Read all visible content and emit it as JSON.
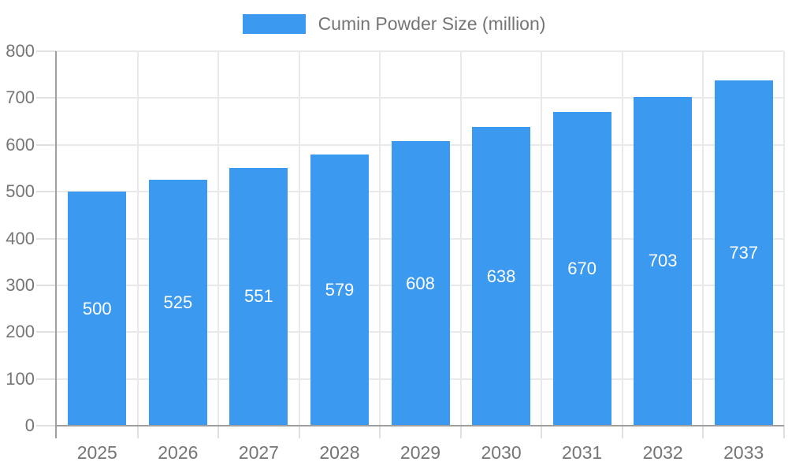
{
  "chart_data": {
    "type": "bar",
    "title": "Cumin Powder Size (million)",
    "categories": [
      "2025",
      "2026",
      "2027",
      "2028",
      "2029",
      "2030",
      "2031",
      "2032",
      "2033"
    ],
    "values": [
      500,
      525,
      551,
      579,
      608,
      638,
      670,
      703,
      737
    ],
    "series": [
      {
        "name": "Cumin Powder Size (million)",
        "values": [
          500,
          525,
          551,
          579,
          608,
          638,
          670,
          703,
          737
        ]
      }
    ],
    "xlabel": "",
    "ylabel": "",
    "ylim": [
      0,
      800
    ],
    "yticks": [
      0,
      100,
      200,
      300,
      400,
      500,
      600,
      700,
      800
    ],
    "grid": true,
    "legend_position": "top-center",
    "value_label_style": "white-centered-inside-bar"
  },
  "colors": {
    "bar": "#3b99f0",
    "axis-label": "#757575",
    "legend-text": "#757575",
    "axis-line": "#9e9e9e",
    "gridline": "#e9e9e9",
    "tick": "#e0e0e0",
    "value-label": "#ffffff",
    "background": "#ffffff"
  }
}
